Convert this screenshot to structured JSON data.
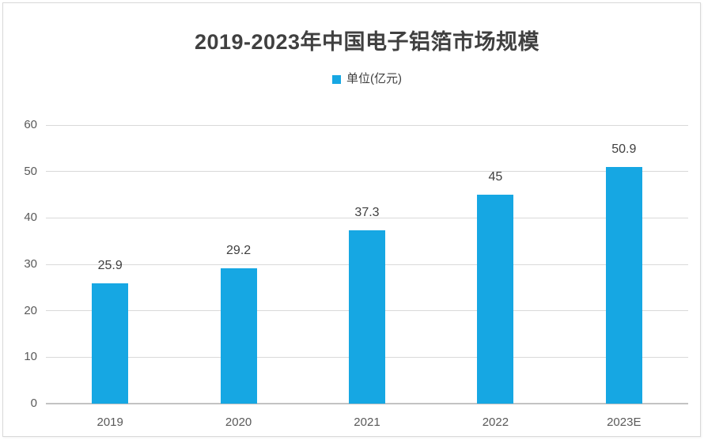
{
  "window": {
    "kind": "static-chart-screenshot"
  },
  "chart_data": {
    "type": "bar",
    "title": "2019-2023年中国电子铝箔市场规模",
    "legend": [
      "单位(亿元)"
    ],
    "legend_position": "top-center",
    "categories": [
      "2019",
      "2020",
      "2021",
      "2022",
      "2023E"
    ],
    "values": [
      25.9,
      29.2,
      37.3,
      45,
      50.9
    ],
    "value_labels": [
      "25.9",
      "29.2",
      "37.3",
      "45",
      "50.9"
    ],
    "series": [
      {
        "name": "单位(亿元)",
        "values": [
          25.9,
          29.2,
          37.3,
          45,
          50.9
        ]
      }
    ],
    "xlabel": "",
    "ylabel": "",
    "ylim": [
      0,
      60
    ],
    "y_ticks": [
      0,
      10,
      20,
      30,
      40,
      50,
      60
    ],
    "grid": true,
    "colors": {
      "bar": "#16a7e3",
      "gridline": "#d9d9d9",
      "axis_line": "#c3c3c3",
      "tick_label": "#595959",
      "data_label": "#404040",
      "title": "#404040",
      "frame_border": "#d9d9d9",
      "background": "#ffffff"
    }
  }
}
